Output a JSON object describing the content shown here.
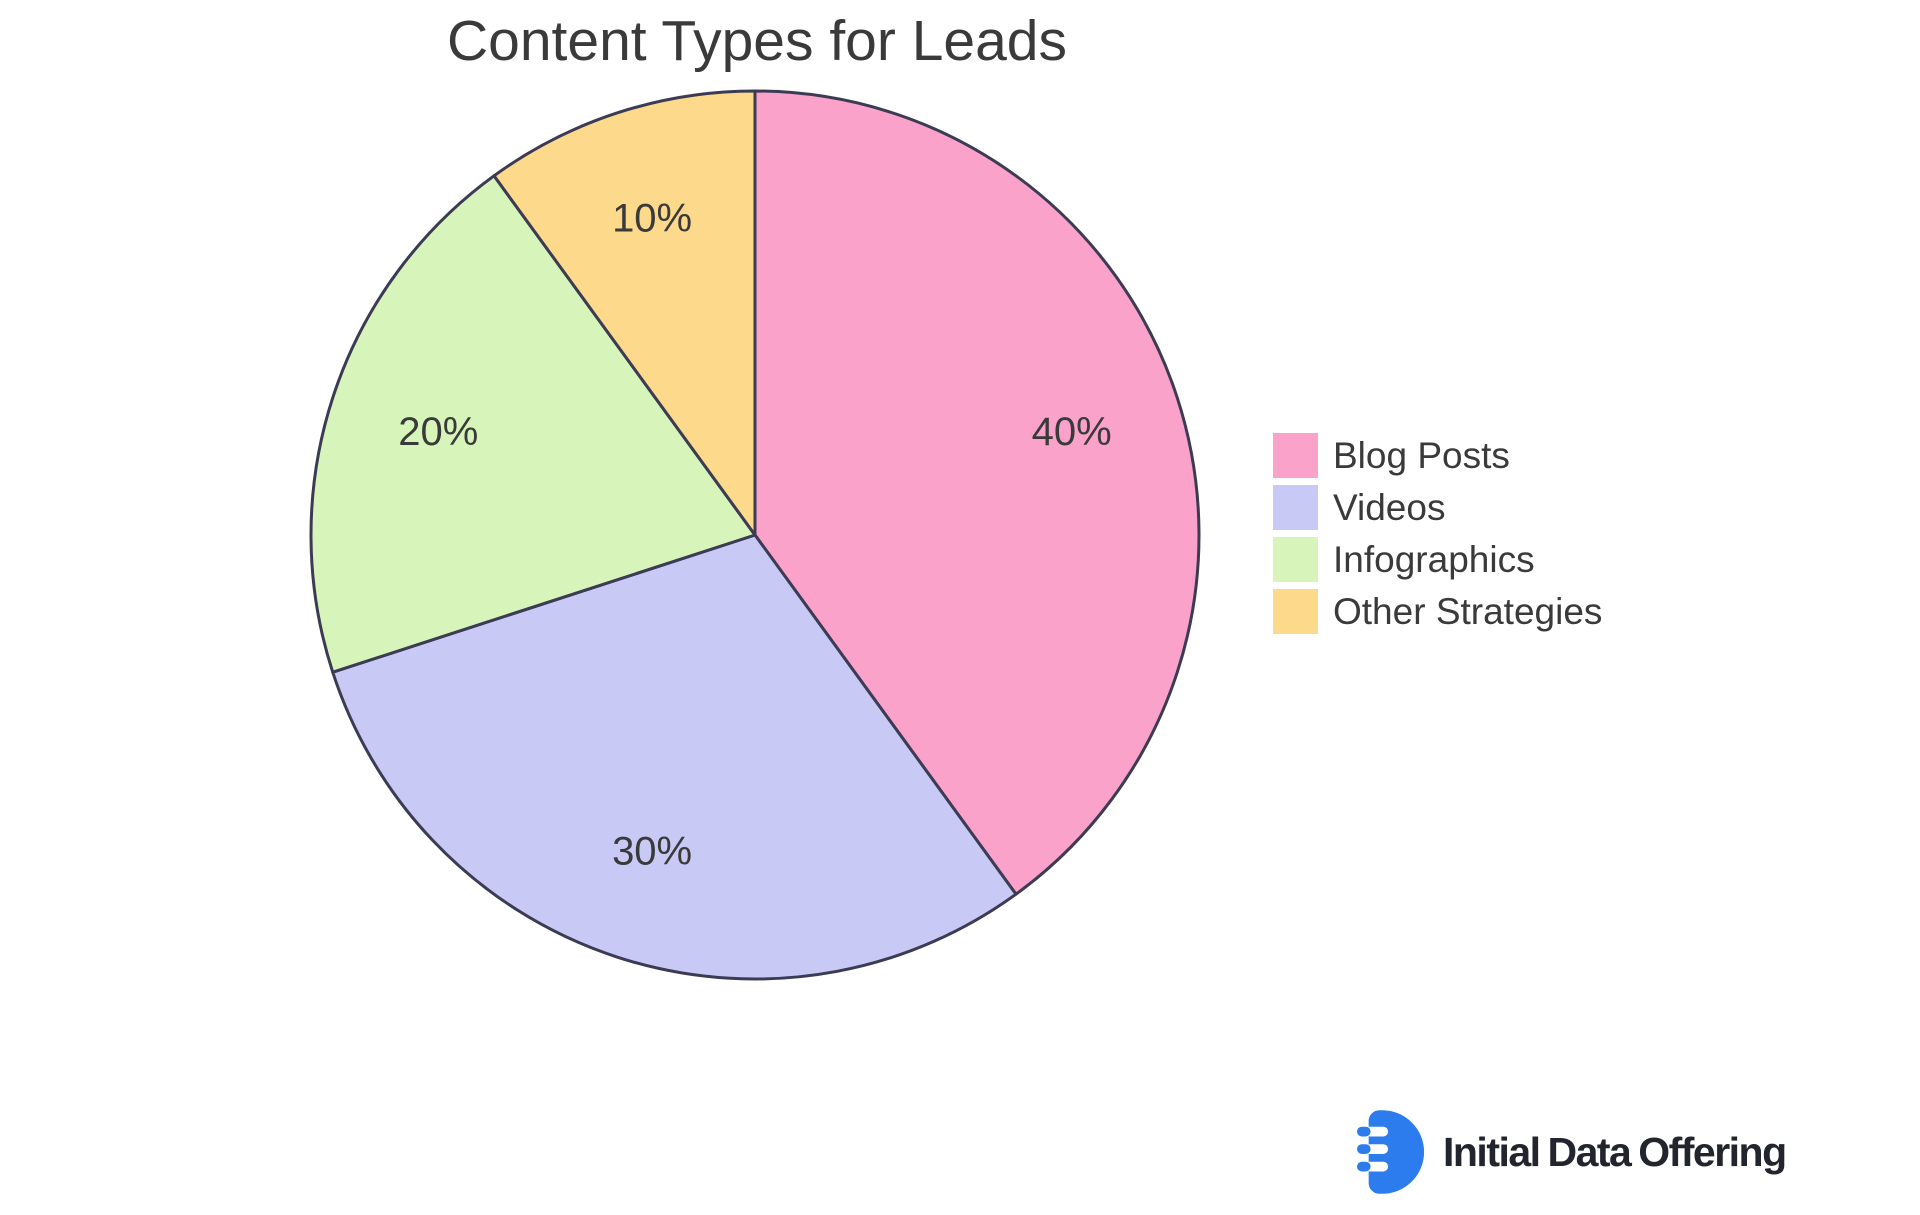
{
  "title": "Content Types for Leads",
  "chart_data": {
    "type": "pie",
    "title": "Content Types for Leads",
    "categories": [
      "Blog Posts",
      "Videos",
      "Infographics",
      "Other Strategies"
    ],
    "values": [
      40,
      30,
      20,
      10
    ],
    "slice_labels": [
      "40%",
      "30%",
      "20%",
      "10%"
    ],
    "colors": [
      "#FBA2CB",
      "#C9C9F6",
      "#D7F5BA",
      "#FCD98B"
    ],
    "start_angle_deg": 0,
    "direction": "clockwise",
    "slice_border_color": "#3C3B54",
    "slice_border_width": 3,
    "label_color": "#3A3A3A",
    "label_distance": 0.75,
    "legend_position": "right",
    "legend_items": [
      {
        "label": "Blog Posts",
        "color": "#FBA2CB"
      },
      {
        "label": "Videos",
        "color": "#C9C9F6"
      },
      {
        "label": "Infographics",
        "color": "#D7F5BA"
      },
      {
        "label": "Other Strategies",
        "color": "#FCD98B"
      }
    ]
  },
  "branding": {
    "name": "Initial Data Offering",
    "logo_icon": "ido-logo-icon",
    "logo_color": "#2D7CEE",
    "text_color": "#23252E"
  }
}
